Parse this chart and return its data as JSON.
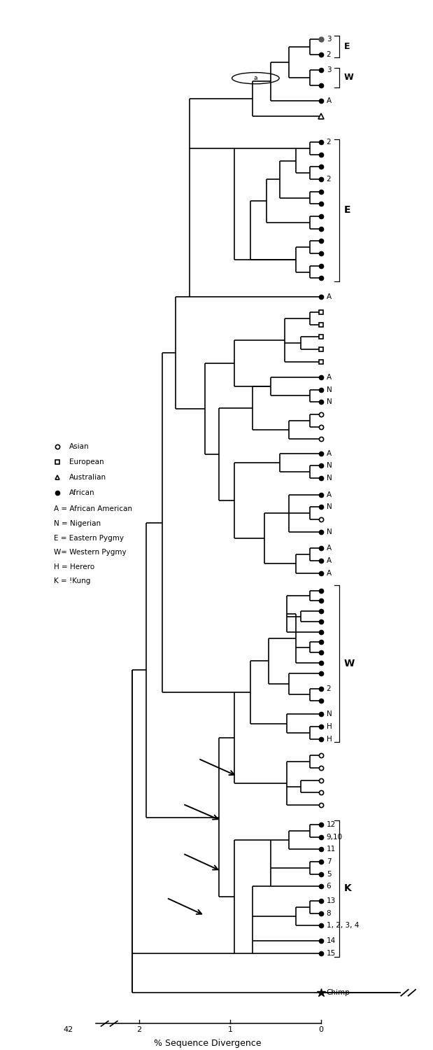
{
  "bg_color": "#ffffff",
  "tip_x": 3.0,
  "lw": 1.2,
  "xlim": [
    -0.5,
    4.2
  ],
  "ylim": [
    0.5,
    100.5
  ],
  "leaves": [
    {
      "y": 97.0,
      "marker": "filled_dark",
      "label": "3"
    },
    {
      "y": 95.5,
      "marker": "filled",
      "label": "2"
    },
    {
      "y": 94.0,
      "marker": "filled",
      "label": "3"
    },
    {
      "y": 92.5,
      "marker": "filled",
      "label": ""
    },
    {
      "y": 91.0,
      "marker": "filled",
      "label": "A"
    },
    {
      "y": 89.5,
      "marker": "triangle",
      "label": ""
    },
    {
      "y": 87.0,
      "marker": "filled",
      "label": "2"
    },
    {
      "y": 85.8,
      "marker": "filled",
      "label": ""
    },
    {
      "y": 84.6,
      "marker": "filled",
      "label": ""
    },
    {
      "y": 83.4,
      "marker": "filled",
      "label": "2"
    },
    {
      "y": 82.2,
      "marker": "filled",
      "label": ""
    },
    {
      "y": 81.0,
      "marker": "filled",
      "label": ""
    },
    {
      "y": 79.8,
      "marker": "filled",
      "label": ""
    },
    {
      "y": 78.6,
      "marker": "filled",
      "label": ""
    },
    {
      "y": 77.4,
      "marker": "filled",
      "label": ""
    },
    {
      "y": 76.2,
      "marker": "filled",
      "label": ""
    },
    {
      "y": 75.0,
      "marker": "filled",
      "label": ""
    },
    {
      "y": 73.8,
      "marker": "filled",
      "label": ""
    },
    {
      "y": 72.0,
      "marker": "filled",
      "label": "A"
    },
    {
      "y": 70.5,
      "marker": "square",
      "label": ""
    },
    {
      "y": 69.3,
      "marker": "square",
      "label": ""
    },
    {
      "y": 68.1,
      "marker": "square",
      "label": ""
    },
    {
      "y": 66.9,
      "marker": "square",
      "label": ""
    },
    {
      "y": 65.7,
      "marker": "square",
      "label": ""
    },
    {
      "y": 64.2,
      "marker": "filled",
      "label": "A"
    },
    {
      "y": 63.0,
      "marker": "filled",
      "label": "N"
    },
    {
      "y": 61.8,
      "marker": "filled",
      "label": "N"
    },
    {
      "y": 60.6,
      "marker": "open",
      "label": ""
    },
    {
      "y": 59.4,
      "marker": "open",
      "label": ""
    },
    {
      "y": 58.2,
      "marker": "open",
      "label": ""
    },
    {
      "y": 56.8,
      "marker": "filled",
      "label": "A"
    },
    {
      "y": 55.6,
      "marker": "filled",
      "label": "N"
    },
    {
      "y": 54.4,
      "marker": "filled",
      "label": "N"
    },
    {
      "y": 52.8,
      "marker": "filled",
      "label": "A"
    },
    {
      "y": 51.6,
      "marker": "filled",
      "label": "N"
    },
    {
      "y": 50.4,
      "marker": "open",
      "label": ""
    },
    {
      "y": 49.2,
      "marker": "filled",
      "label": "N"
    },
    {
      "y": 47.6,
      "marker": "filled",
      "label": "A"
    },
    {
      "y": 46.4,
      "marker": "filled",
      "label": "A"
    },
    {
      "y": 45.2,
      "marker": "filled",
      "label": "A"
    },
    {
      "y": 43.5,
      "marker": "filled",
      "label": ""
    },
    {
      "y": 42.5,
      "marker": "filled",
      "label": ""
    },
    {
      "y": 41.5,
      "marker": "filled",
      "label": ""
    },
    {
      "y": 40.5,
      "marker": "filled",
      "label": ""
    },
    {
      "y": 39.5,
      "marker": "filled",
      "label": ""
    },
    {
      "y": 38.5,
      "marker": "filled",
      "label": ""
    },
    {
      "y": 37.5,
      "marker": "filled",
      "label": ""
    },
    {
      "y": 36.5,
      "marker": "filled",
      "label": ""
    },
    {
      "y": 35.5,
      "marker": "filled",
      "label": ""
    },
    {
      "y": 34.0,
      "marker": "filled",
      "label": "2"
    },
    {
      "y": 32.8,
      "marker": "filled",
      "label": ""
    },
    {
      "y": 31.5,
      "marker": "filled",
      "label": "N"
    },
    {
      "y": 30.3,
      "marker": "filled",
      "label": "H"
    },
    {
      "y": 29.1,
      "marker": "filled",
      "label": "H"
    },
    {
      "y": 27.5,
      "marker": "open",
      "label": ""
    },
    {
      "y": 26.3,
      "marker": "open",
      "label": ""
    },
    {
      "y": 25.1,
      "marker": "open",
      "label": ""
    },
    {
      "y": 23.9,
      "marker": "open",
      "label": ""
    },
    {
      "y": 22.7,
      "marker": "open",
      "label": ""
    },
    {
      "y": 20.8,
      "marker": "filled",
      "label": "12"
    },
    {
      "y": 19.6,
      "marker": "filled",
      "label": "9,10"
    },
    {
      "y": 18.4,
      "marker": "filled",
      "label": "11"
    },
    {
      "y": 17.2,
      "marker": "filled",
      "label": "7"
    },
    {
      "y": 16.0,
      "marker": "filled",
      "label": "5"
    },
    {
      "y": 14.8,
      "marker": "filled",
      "label": "6"
    },
    {
      "y": 13.4,
      "marker": "filled",
      "label": "13"
    },
    {
      "y": 12.2,
      "marker": "filled",
      "label": "8"
    },
    {
      "y": 11.0,
      "marker": "filled",
      "label": "1, 2, 3, 4"
    },
    {
      "y": 9.5,
      "marker": "filled",
      "label": "14"
    },
    {
      "y": 8.3,
      "marker": "filled",
      "label": "15"
    },
    {
      "y": 4.5,
      "marker": "star",
      "label": "Chimp"
    }
  ]
}
